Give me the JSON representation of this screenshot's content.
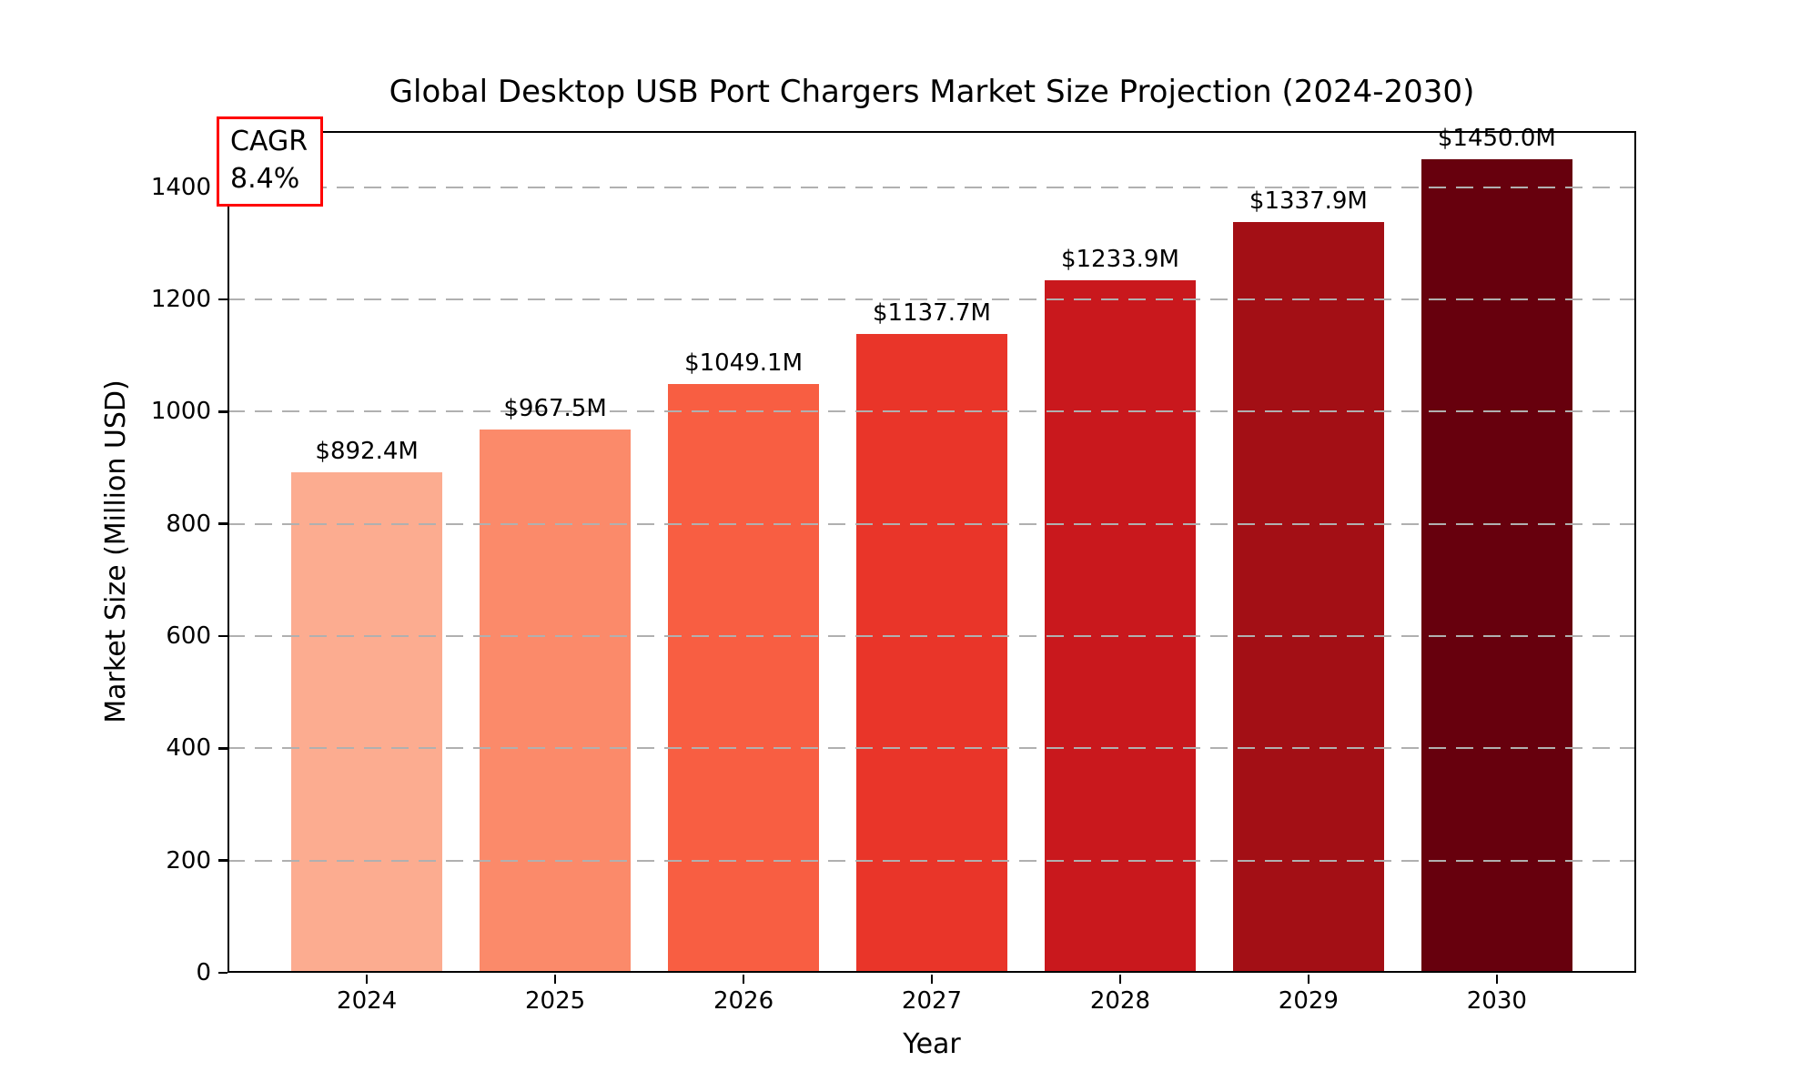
{
  "chart_data": {
    "type": "bar",
    "title": "Global Desktop USB Port Chargers Market Size Projection (2024-2030)",
    "xlabel": "Year",
    "ylabel": "Market Size (Million USD)",
    "categories": [
      "2024",
      "2025",
      "2026",
      "2027",
      "2028",
      "2029",
      "2030"
    ],
    "values": [
      892.4,
      967.5,
      1049.1,
      1137.7,
      1233.9,
      1337.9,
      1450.0
    ],
    "bar_labels": [
      "$892.4M",
      "$967.5M",
      "$1049.1M",
      "$1137.7M",
      "$1233.9M",
      "$1337.9M",
      "$1450.0M"
    ],
    "bar_colors": [
      "#fcac90",
      "#fb8a6a",
      "#f85e42",
      "#e93529",
      "#c9181d",
      "#a30f15",
      "#67000d"
    ],
    "ylim": [
      0,
      1500
    ],
    "yticks": [
      0,
      200,
      400,
      600,
      800,
      1000,
      1200,
      1400
    ],
    "grid": true,
    "grid_color": "#b0b0b0",
    "legend": "none",
    "annotation": {
      "line1": "CAGR",
      "line2": "8.4%",
      "border_color": "#ff0000"
    }
  }
}
